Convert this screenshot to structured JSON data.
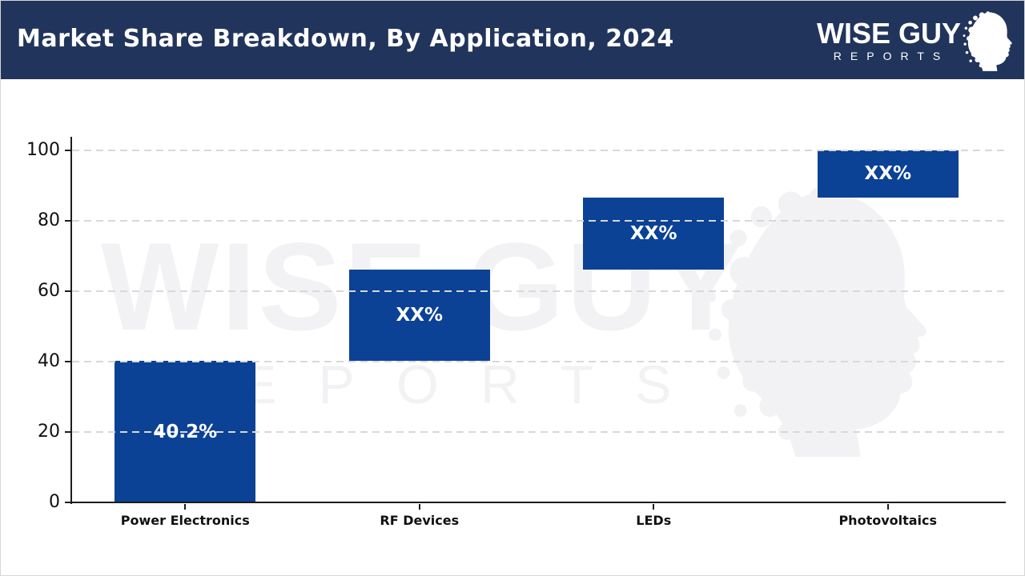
{
  "header": {
    "title": "Market Share Breakdown, By Application, 2024",
    "logo": {
      "line1": "WISE GUY",
      "line2": "REPORTS"
    }
  },
  "watermark": {
    "line1": "WISE GUY",
    "line2": "REPORTS"
  },
  "colors": {
    "header_bg": "#21345C",
    "bar": "#0B4295",
    "grid": "#D8D8D8",
    "axis": "#1C1C1C",
    "watermark": "#F2F2F4"
  },
  "chart_data": {
    "type": "bar",
    "subtype": "waterfall",
    "title": "Market Share Breakdown, By Application, 2024",
    "xlabel": "",
    "ylabel": "",
    "ylim": [
      0,
      100
    ],
    "yticks": [
      0,
      20,
      40,
      60,
      80,
      100
    ],
    "grid": "horizontal dashed",
    "legend": "none",
    "bar_color": "#0B4295",
    "label_color": "#FFFFFF",
    "categories": [
      "Power Electronics",
      "RF Devices",
      "LEDs",
      "Photovoltaics"
    ],
    "segments": [
      {
        "category": "Power Electronics",
        "start": 0,
        "end": 40.2,
        "label": "40.2%"
      },
      {
        "category": "RF Devices",
        "start": 40.2,
        "end": 66.1,
        "label": "XX%"
      },
      {
        "category": "LEDs",
        "start": 66.1,
        "end": 86.6,
        "label": "XX%"
      },
      {
        "category": "Photovoltaics",
        "start": 86.6,
        "end": 100,
        "label": "XX%"
      }
    ]
  }
}
